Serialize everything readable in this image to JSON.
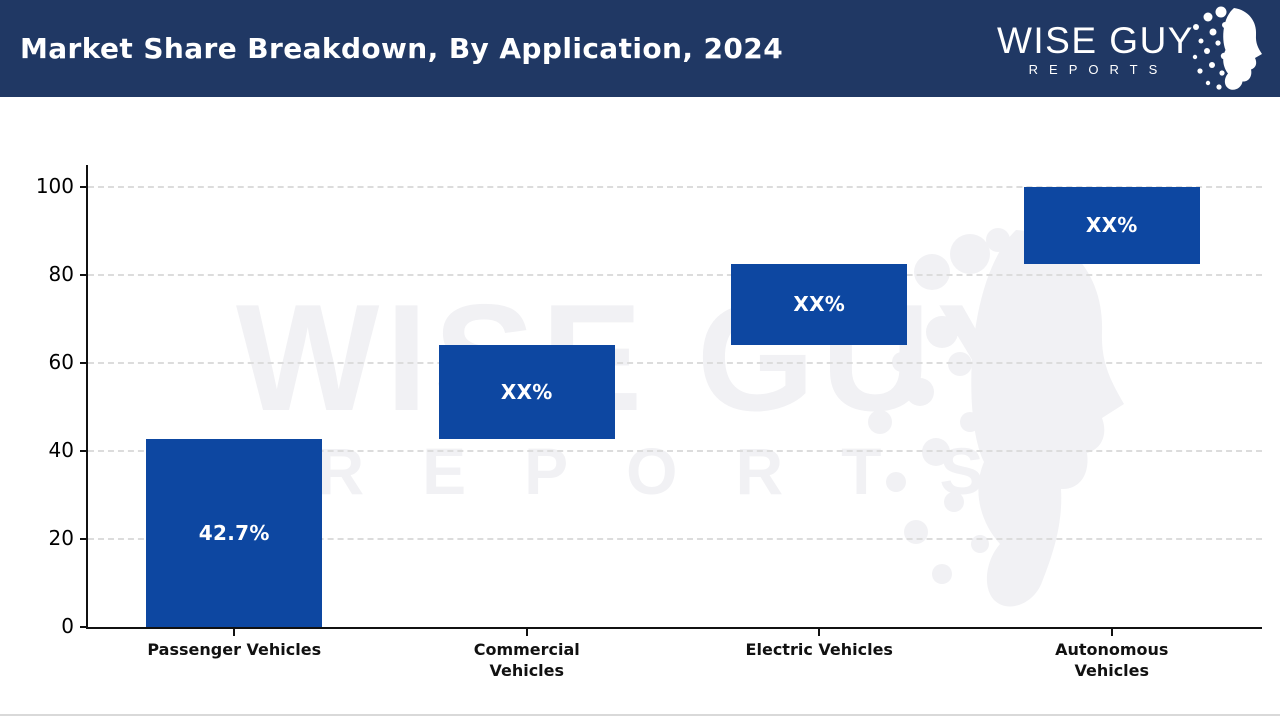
{
  "header": {
    "title": "Market Share Breakdown, By Application, 2024",
    "logo": {
      "line1": "WISE GUY",
      "line2": "REPORTS"
    }
  },
  "watermark": {
    "line1": "WISE GUY",
    "line2": "REPORTS"
  },
  "colors": {
    "header_bg": "#203864",
    "bar": "#0d47a1",
    "bar_label": "#ffffff",
    "gridline": "#dcdcdc",
    "axis": "#111111",
    "watermark": "#f1f1f4"
  },
  "chart_data": {
    "type": "bar",
    "subtype": "waterfall",
    "title": "Market Share Breakdown, By Application, 2024",
    "categories": [
      "Passenger Vehicles",
      "Commercial\nVehicles",
      "Electric Vehicles",
      "Autonomous\nVehicles"
    ],
    "series": [
      {
        "name": "Market Share (%)",
        "segments": [
          {
            "category": "Passenger Vehicles",
            "start": 0,
            "end": 42.7,
            "label": "42.7%"
          },
          {
            "category": "Commercial Vehicles",
            "start": 42.7,
            "end": 64.2,
            "label": "XX%"
          },
          {
            "category": "Electric Vehicles",
            "start": 64.2,
            "end": 82.6,
            "label": "XX%"
          },
          {
            "category": "Autonomous Vehicles",
            "start": 82.6,
            "end": 100,
            "label": "XX%"
          }
        ]
      }
    ],
    "xlabel": "",
    "ylabel": "",
    "ylim": [
      0,
      100
    ],
    "yticks": [
      0,
      20,
      40,
      60,
      80,
      100
    ],
    "grid": "horizontal-dashed",
    "legend": "none"
  }
}
